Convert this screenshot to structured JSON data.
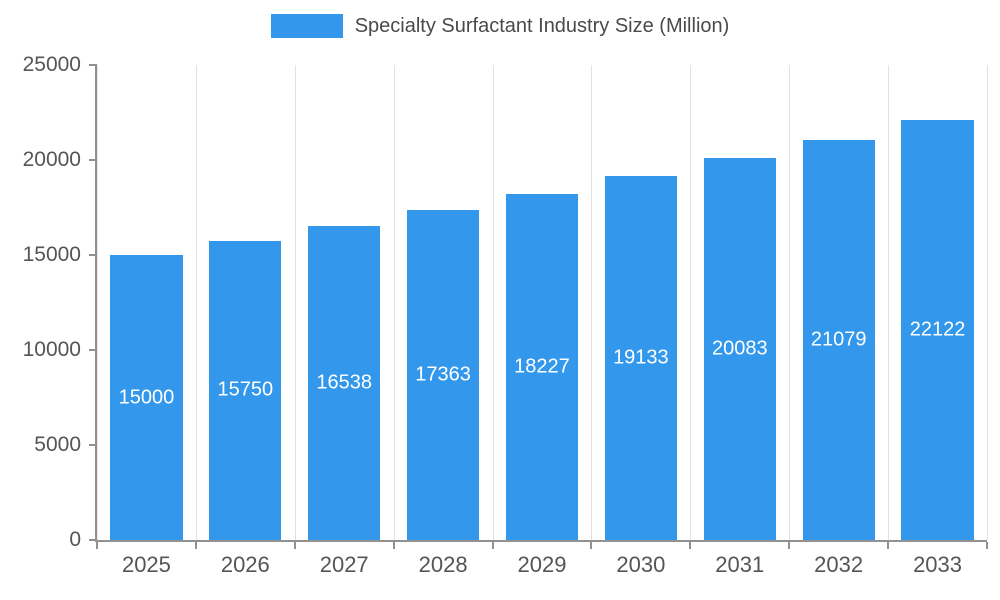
{
  "legend": {
    "label": "Specialty Surfactant Industry Size (Million)"
  },
  "chart_data": {
    "type": "bar",
    "title": "Specialty Surfactant Industry Size (Million)",
    "categories": [
      "2025",
      "2026",
      "2027",
      "2028",
      "2029",
      "2030",
      "2031",
      "2032",
      "2033"
    ],
    "values": [
      15000,
      15750,
      16538,
      17363,
      18227,
      19133,
      20083,
      21079,
      22122
    ],
    "series": [
      {
        "name": "Specialty Surfactant Industry Size (Million)",
        "values": [
          15000,
          15750,
          16538,
          17363,
          18227,
          19133,
          20083,
          21079,
          22122
        ]
      }
    ],
    "xlabel": "",
    "ylabel": "",
    "ylim": [
      0,
      25000
    ],
    "yticks": [
      0,
      5000,
      10000,
      15000,
      20000,
      25000
    ],
    "grid": "vertical",
    "legend_position": "top",
    "colors": {
      "bar": "#3398EC",
      "bar_value_label": "#ffffff",
      "axis_line": "#919191",
      "gridline": "#e2e2e2",
      "tick_text": "#555555",
      "legend_text": "#4a4a4a",
      "background": "#ffffff"
    }
  }
}
